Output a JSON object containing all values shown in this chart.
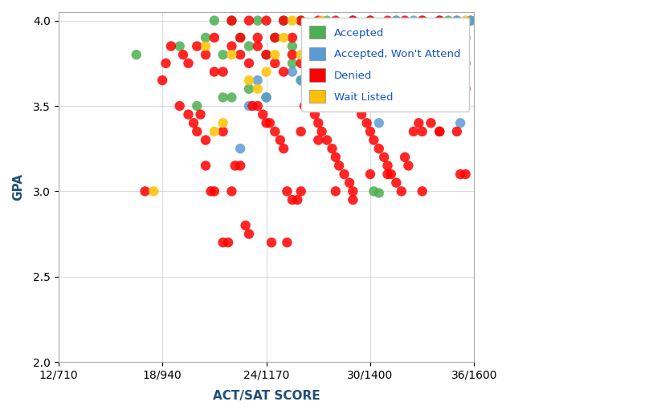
{
  "title": "",
  "xlabel": "ACT/SAT SCORE",
  "ylabel": "GPA",
  "xlim": [
    12,
    36
  ],
  "ylim": [
    2.0,
    4.05
  ],
  "xticks": [
    12,
    18,
    24,
    30,
    36
  ],
  "xticklabels": [
    "12/710",
    "18/940",
    "24/1170",
    "30/1400",
    "36/1600"
  ],
  "yticks": [
    2.0,
    2.5,
    3.0,
    3.5,
    4.0
  ],
  "background_color": "#ffffff",
  "categories": {
    "Accepted": {
      "color": "#4CAF50",
      "marker": "o",
      "data": [
        [
          16.5,
          3.8
        ],
        [
          19.0,
          3.85
        ],
        [
          20.5,
          3.9
        ],
        [
          21.0,
          4.0
        ],
        [
          21.5,
          3.8
        ],
        [
          22.0,
          4.0
        ],
        [
          22.5,
          3.9
        ],
        [
          23.0,
          3.85
        ],
        [
          23.5,
          4.0
        ],
        [
          24.0,
          3.8
        ],
        [
          24.5,
          3.9
        ],
        [
          25.0,
          4.0
        ],
        [
          25.5,
          3.85
        ],
        [
          26.0,
          4.0
        ],
        [
          26.5,
          3.75
        ],
        [
          27.0,
          3.9
        ],
        [
          27.5,
          4.0
        ],
        [
          28.0,
          3.8
        ],
        [
          28.5,
          3.9
        ],
        [
          29.0,
          4.0
        ],
        [
          29.5,
          3.85
        ],
        [
          30.0,
          4.0
        ],
        [
          30.5,
          3.9
        ],
        [
          31.0,
          3.75
        ],
        [
          31.5,
          4.0
        ],
        [
          32.0,
          3.85
        ],
        [
          32.5,
          3.9
        ],
        [
          33.0,
          4.0
        ],
        [
          33.5,
          3.8
        ],
        [
          34.0,
          3.95
        ],
        [
          34.5,
          4.0
        ],
        [
          35.0,
          4.0
        ],
        [
          35.5,
          3.9
        ],
        [
          30.2,
          3.0
        ],
        [
          30.5,
          2.99
        ],
        [
          22.0,
          3.55
        ],
        [
          24.0,
          3.55
        ],
        [
          26.0,
          3.65
        ],
        [
          28.0,
          3.7
        ],
        [
          27.5,
          3.6
        ],
        [
          25.5,
          3.75
        ],
        [
          23.0,
          3.6
        ],
        [
          29.5,
          3.65
        ],
        [
          31.0,
          3.6
        ],
        [
          32.0,
          3.65
        ],
        [
          33.5,
          3.6
        ],
        [
          34.0,
          3.7
        ],
        [
          35.0,
          3.6
        ],
        [
          26.5,
          3.8
        ],
        [
          28.5,
          3.8
        ],
        [
          30.8,
          3.85
        ],
        [
          32.5,
          3.8
        ],
        [
          34.2,
          3.8
        ],
        [
          35.8,
          4.0
        ],
        [
          35.5,
          3.75
        ],
        [
          21.5,
          3.55
        ],
        [
          20.0,
          3.5
        ]
      ]
    },
    "Accepted, Won't Attend": {
      "color": "#5B9BD5",
      "marker": "o",
      "data": [
        [
          22.5,
          3.25
        ],
        [
          23.5,
          3.65
        ],
        [
          24.0,
          3.55
        ],
        [
          25.5,
          3.7
        ],
        [
          26.5,
          3.8
        ],
        [
          27.0,
          3.75
        ],
        [
          28.5,
          3.85
        ],
        [
          29.0,
          4.0
        ],
        [
          30.0,
          3.9
        ],
        [
          31.0,
          3.75
        ],
        [
          31.5,
          4.0
        ],
        [
          32.0,
          3.85
        ],
        [
          32.5,
          4.0
        ],
        [
          33.0,
          3.8
        ],
        [
          33.5,
          3.75
        ],
        [
          34.0,
          4.0
        ],
        [
          34.5,
          3.9
        ],
        [
          35.0,
          4.0
        ],
        [
          35.2,
          3.4
        ],
        [
          35.5,
          3.75
        ],
        [
          35.8,
          4.0
        ],
        [
          30.5,
          3.4
        ],
        [
          27.5,
          3.7
        ],
        [
          26.0,
          3.65
        ],
        [
          23.0,
          3.5
        ],
        [
          29.5,
          3.8
        ],
        [
          31.8,
          3.7
        ],
        [
          33.2,
          3.85
        ],
        [
          34.8,
          3.9
        ]
      ]
    },
    "Denied": {
      "color": "#FF0000",
      "marker": "o",
      "data": [
        [
          17.0,
          3.0
        ],
        [
          18.0,
          3.65
        ],
        [
          18.5,
          3.85
        ],
        [
          19.0,
          3.5
        ],
        [
          19.5,
          3.45
        ],
        [
          19.8,
          3.4
        ],
        [
          20.0,
          3.35
        ],
        [
          20.2,
          3.45
        ],
        [
          20.5,
          3.15
        ],
        [
          20.8,
          3.0
        ],
        [
          21.0,
          3.0
        ],
        [
          21.5,
          2.7
        ],
        [
          21.8,
          2.7
        ],
        [
          22.0,
          3.0
        ],
        [
          22.2,
          3.15
        ],
        [
          22.5,
          3.15
        ],
        [
          22.8,
          2.8
        ],
        [
          23.0,
          2.75
        ],
        [
          23.2,
          3.5
        ],
        [
          23.5,
          3.5
        ],
        [
          23.8,
          3.45
        ],
        [
          24.0,
          3.4
        ],
        [
          24.2,
          3.4
        ],
        [
          24.5,
          3.35
        ],
        [
          24.8,
          3.3
        ],
        [
          25.0,
          3.25
        ],
        [
          25.2,
          3.0
        ],
        [
          25.5,
          2.95
        ],
        [
          25.8,
          2.95
        ],
        [
          26.0,
          3.0
        ],
        [
          26.2,
          3.5
        ],
        [
          26.5,
          3.5
        ],
        [
          26.8,
          3.45
        ],
        [
          27.0,
          3.4
        ],
        [
          27.2,
          3.35
        ],
        [
          27.5,
          3.3
        ],
        [
          27.8,
          3.25
        ],
        [
          28.0,
          3.2
        ],
        [
          28.2,
          3.15
        ],
        [
          28.5,
          3.1
        ],
        [
          28.8,
          3.05
        ],
        [
          29.0,
          3.0
        ],
        [
          29.2,
          3.5
        ],
        [
          29.5,
          3.45
        ],
        [
          29.8,
          3.4
        ],
        [
          30.0,
          3.35
        ],
        [
          30.2,
          3.3
        ],
        [
          30.5,
          3.25
        ],
        [
          30.8,
          3.2
        ],
        [
          31.0,
          3.15
        ],
        [
          31.2,
          3.1
        ],
        [
          31.5,
          3.05
        ],
        [
          31.8,
          3.0
        ],
        [
          32.0,
          3.2
        ],
        [
          32.2,
          3.15
        ],
        [
          32.5,
          3.35
        ],
        [
          32.8,
          3.4
        ],
        [
          33.0,
          3.35
        ],
        [
          33.5,
          3.4
        ],
        [
          34.0,
          3.35
        ],
        [
          18.2,
          3.75
        ],
        [
          19.2,
          3.8
        ],
        [
          19.5,
          3.75
        ],
        [
          20.0,
          3.85
        ],
        [
          20.5,
          3.8
        ],
        [
          21.0,
          3.7
        ],
        [
          21.5,
          3.7
        ],
        [
          22.0,
          3.85
        ],
        [
          22.5,
          3.8
        ],
        [
          23.0,
          3.75
        ],
        [
          23.5,
          3.85
        ],
        [
          24.0,
          3.8
        ],
        [
          24.5,
          3.75
        ],
        [
          25.0,
          3.7
        ],
        [
          25.5,
          3.8
        ],
        [
          26.0,
          3.75
        ],
        [
          26.5,
          3.85
        ],
        [
          27.0,
          3.8
        ],
        [
          27.5,
          3.75
        ],
        [
          28.0,
          3.85
        ],
        [
          28.5,
          3.8
        ],
        [
          29.0,
          3.75
        ],
        [
          29.5,
          3.7
        ],
        [
          30.0,
          3.65
        ],
        [
          30.5,
          3.6
        ],
        [
          31.0,
          3.55
        ],
        [
          31.5,
          3.65
        ],
        [
          32.0,
          3.6
        ],
        [
          32.5,
          3.55
        ],
        [
          33.0,
          3.5
        ],
        [
          22.0,
          4.0
        ],
        [
          23.0,
          4.0
        ],
        [
          24.0,
          4.0
        ],
        [
          25.0,
          4.0
        ],
        [
          26.0,
          4.0
        ],
        [
          27.0,
          4.0
        ],
        [
          28.0,
          4.0
        ],
        [
          29.0,
          4.0
        ],
        [
          30.0,
          4.0
        ],
        [
          31.0,
          4.0
        ],
        [
          32.0,
          4.0
        ],
        [
          33.0,
          4.0
        ],
        [
          34.0,
          4.0
        ],
        [
          21.0,
          3.9
        ],
        [
          22.5,
          3.9
        ],
        [
          23.5,
          3.9
        ],
        [
          24.5,
          3.9
        ],
        [
          25.5,
          3.9
        ],
        [
          26.5,
          3.9
        ],
        [
          27.5,
          3.9
        ],
        [
          28.5,
          3.9
        ],
        [
          29.5,
          3.9
        ],
        [
          30.5,
          3.9
        ],
        [
          31.5,
          3.9
        ],
        [
          32.5,
          3.9
        ],
        [
          24.3,
          2.7
        ],
        [
          25.2,
          2.7
        ],
        [
          26.0,
          3.35
        ],
        [
          27.0,
          3.3
        ],
        [
          28.0,
          3.0
        ],
        [
          29.0,
          2.95
        ],
        [
          30.0,
          3.1
        ],
        [
          31.0,
          3.1
        ],
        [
          33.0,
          3.0
        ],
        [
          34.0,
          3.35
        ],
        [
          35.0,
          3.35
        ],
        [
          35.5,
          3.6
        ],
        [
          34.0,
          3.5
        ],
        [
          35.0,
          3.55
        ],
        [
          35.2,
          3.1
        ],
        [
          35.5,
          3.1
        ],
        [
          20.5,
          3.3
        ],
        [
          21.5,
          3.35
        ]
      ]
    },
    "Wait Listed": {
      "color": "#FFC000",
      "marker": "o",
      "data": [
        [
          17.5,
          3.0
        ],
        [
          20.5,
          3.85
        ],
        [
          21.5,
          3.4
        ],
        [
          22.0,
          3.8
        ],
        [
          23.0,
          3.65
        ],
        [
          24.5,
          3.8
        ],
        [
          25.0,
          3.9
        ],
        [
          26.0,
          3.8
        ],
        [
          27.0,
          3.75
        ],
        [
          27.5,
          3.85
        ],
        [
          28.5,
          3.75
        ],
        [
          29.0,
          3.85
        ],
        [
          30.0,
          3.8
        ],
        [
          31.0,
          3.75
        ],
        [
          32.0,
          3.85
        ],
        [
          33.0,
          3.8
        ],
        [
          34.0,
          3.6
        ],
        [
          35.0,
          3.55
        ],
        [
          35.5,
          4.0
        ],
        [
          24.0,
          3.7
        ],
        [
          26.5,
          3.65
        ],
        [
          28.0,
          3.55
        ],
        [
          30.5,
          3.7
        ],
        [
          32.5,
          3.75
        ],
        [
          34.5,
          3.9
        ],
        [
          21.0,
          3.35
        ],
        [
          23.5,
          3.6
        ],
        [
          25.5,
          4.0
        ],
        [
          27.2,
          4.0
        ],
        [
          29.5,
          3.75
        ],
        [
          31.5,
          3.6
        ],
        [
          33.5,
          3.75
        ]
      ]
    }
  }
}
